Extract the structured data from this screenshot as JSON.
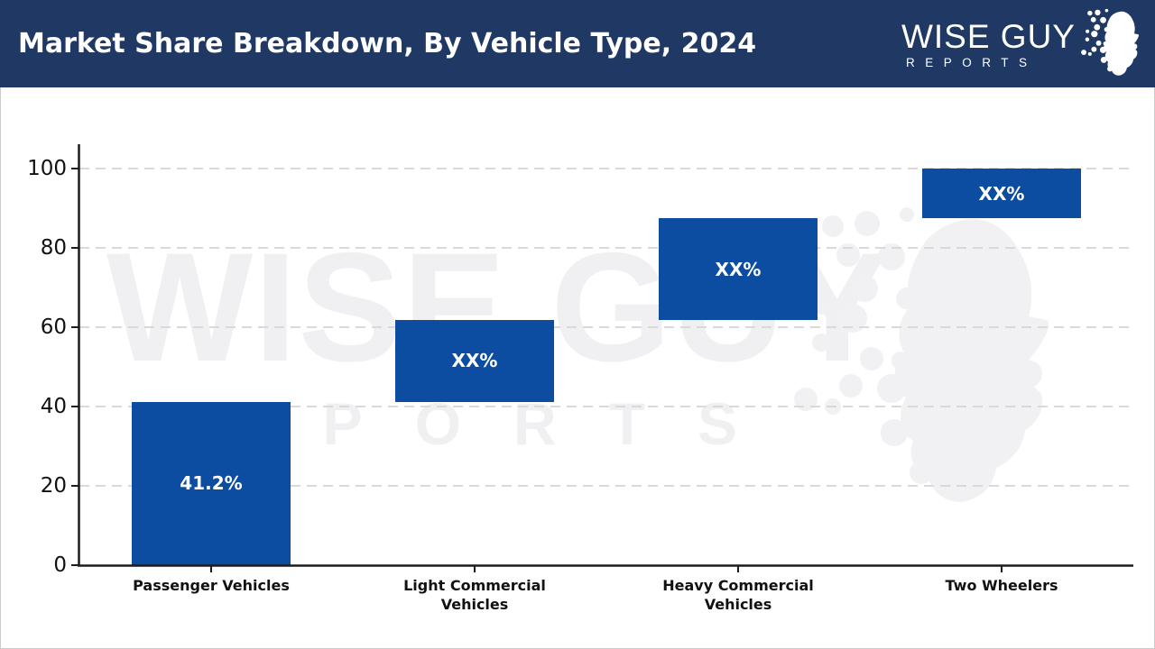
{
  "header": {
    "title": "Market Share Breakdown, By Vehicle Type, 2024",
    "logo_line1": "WISE GUY",
    "logo_line2": "REPORTS"
  },
  "watermark": {
    "line1": "WISE GUY",
    "line2": "REPORTS"
  },
  "colors": {
    "header_bg": "#1f3864",
    "bar": "#0d4da1",
    "bar_label": "#ffffff",
    "grid": "#d9d9d9",
    "axis": "#1c1c1c",
    "tick_text": "#111111",
    "watermark": "#f0f0f2"
  },
  "chart_data": {
    "type": "bar",
    "subtype": "waterfall",
    "title": "Market Share Breakdown, By Vehicle Type, 2024",
    "categories": [
      "Passenger Vehicles",
      "Light Commercial Vehicles",
      "Heavy Commercial Vehicles",
      "Two Wheelers"
    ],
    "series": [
      {
        "name": "Market Share",
        "segments": [
          {
            "category": "Passenger Vehicles",
            "start": 0,
            "end": 41.2,
            "label": "41.2%"
          },
          {
            "category": "Light Commercial Vehicles",
            "start": 41.2,
            "end": 61.8,
            "label": "XX%"
          },
          {
            "category": "Heavy Commercial Vehicles",
            "start": 61.8,
            "end": 87.5,
            "label": "XX%"
          },
          {
            "category": "Two Wheelers",
            "start": 87.5,
            "end": 100,
            "label": "XX%"
          }
        ]
      }
    ],
    "xlabel": "",
    "ylabel": "",
    "yticks": [
      0,
      20,
      40,
      60,
      80,
      100
    ],
    "ylim": [
      0,
      100
    ],
    "grid": "horizontal-dashed",
    "legend": "none"
  }
}
